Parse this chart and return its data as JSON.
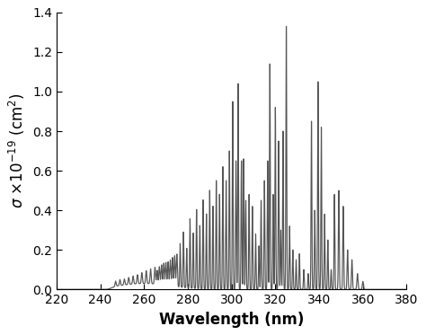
{
  "xlabel": "Wavelength (nm)",
  "xlim": [
    220,
    380
  ],
  "ylim": [
    0.0,
    1.4
  ],
  "xticks": [
    220,
    240,
    260,
    280,
    300,
    320,
    340,
    360,
    380
  ],
  "yticks": [
    0.0,
    0.2,
    0.4,
    0.6,
    0.8,
    1.0,
    1.2,
    1.4
  ],
  "line_color": "#555555",
  "line_width": 0.85,
  "background_color": "#ffffff",
  "tick_fontsize": 10,
  "label_fontsize": 12
}
